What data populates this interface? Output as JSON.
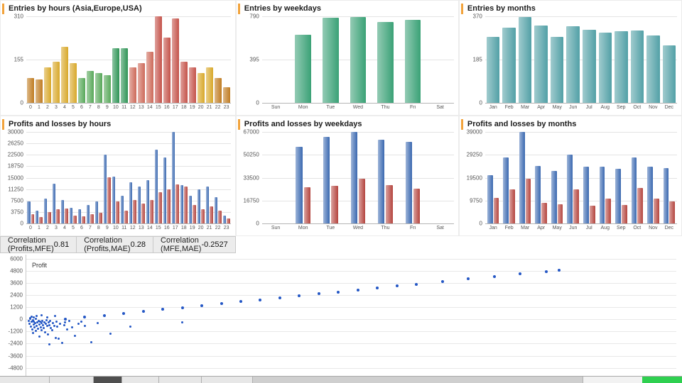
{
  "accent": {
    "title_accent": "#f2a33c",
    "profit_blue": "#3a68b0",
    "loss_red": "#b4443e",
    "entries_green": "#3aa176",
    "entries_teal": "#52a0a6",
    "scatter_dot": "#2457c5",
    "indicator_green": "#2fd050"
  },
  "correlation_bar": [
    {
      "label": "Correlation (Profits,MFE)",
      "value": "0.81"
    },
    {
      "label": "Correlation (Profits,MAE)",
      "value": "0.28"
    },
    {
      "label": "Correlation (MFE,MAE)",
      "value": "-0.2527"
    }
  ],
  "chart_data": [
    {
      "id": "entries_by_hours",
      "type": "bar",
      "title": "Entries by hours (Asia,Europe,USA)",
      "categories": [
        "0",
        "1",
        "2",
        "3",
        "4",
        "5",
        "6",
        "7",
        "8",
        "9",
        "10",
        "11",
        "12",
        "13",
        "14",
        "15",
        "16",
        "17",
        "18",
        "19",
        "20",
        "21",
        "22",
        "23"
      ],
      "values": [
        88,
        83,
        128,
        147,
        200,
        142,
        88,
        115,
        107,
        100,
        195,
        195,
        126,
        142,
        182,
        310,
        235,
        302,
        147,
        128,
        107,
        128,
        88,
        56
      ],
      "bar_colors": [
        "#c07c22",
        "#c07c22",
        "#d8a82a",
        "#d8a82a",
        "#d8a82a",
        "#d8a82a",
        "#58a85a",
        "#58a85a",
        "#58a85a",
        "#58a85a",
        "#2e9455",
        "#2e9455",
        "#cd6a5a",
        "#cd6a5a",
        "#cd6a5a",
        "#c4524a",
        "#c4524a",
        "#c4524a",
        "#c4524a",
        "#c4524a",
        "#d8a82a",
        "#d8a82a",
        "#c07c22",
        "#c07c22"
      ],
      "ylim": [
        0,
        310
      ],
      "yticks": [
        0,
        155,
        310
      ]
    },
    {
      "id": "entries_by_weekdays",
      "type": "bar",
      "title": "Entries by weekdays",
      "categories": [
        "Sun",
        "Mon",
        "Tue",
        "Wed",
        "Thu",
        "Fri",
        "Sat"
      ],
      "values": [
        0,
        620,
        775,
        785,
        740,
        760,
        0
      ],
      "color": "#3aa176",
      "ylim": [
        0,
        790
      ],
      "yticks": [
        0,
        395,
        790
      ]
    },
    {
      "id": "entries_by_months",
      "type": "bar",
      "title": "Entries by months",
      "categories": [
        "Jan",
        "Feb",
        "Mar",
        "Apr",
        "May",
        "Jun",
        "Jul",
        "Aug",
        "Sep",
        "Oct",
        "Nov",
        "Dec"
      ],
      "values": [
        283,
        322,
        368,
        330,
        283,
        328,
        312,
        300,
        306,
        310,
        287,
        247
      ],
      "color": "#52a0a6",
      "ylim": [
        0,
        370
      ],
      "yticks": [
        0,
        185,
        370
      ]
    },
    {
      "id": "pl_by_hours",
      "type": "bar",
      "title": "Profits and losses by hours",
      "categories": [
        "0",
        "1",
        "2",
        "3",
        "4",
        "5",
        "6",
        "7",
        "8",
        "9",
        "10",
        "11",
        "12",
        "13",
        "14",
        "15",
        "16",
        "17",
        "18",
        "19",
        "20",
        "21",
        "22",
        "23"
      ],
      "series": [
        {
          "name": "profit",
          "color": "#3a68b0",
          "values": [
            7200,
            4100,
            8100,
            13100,
            7600,
            5100,
            4600,
            6100,
            7100,
            22600,
            15300,
            9100,
            13600,
            12100,
            14100,
            24200,
            21600,
            30000,
            12600,
            9100,
            11100,
            12100,
            8600,
            2600
          ]
        },
        {
          "name": "loss",
          "color": "#b4443e",
          "values": [
            3000,
            2100,
            3700,
            4600,
            4900,
            2600,
            2300,
            3100,
            3600,
            15200,
            7100,
            4100,
            7600,
            6600,
            7700,
            10200,
            11200,
            12900,
            12100,
            6100,
            4600,
            5600,
            4100,
            1600
          ]
        }
      ],
      "ylim": [
        0,
        30000
      ],
      "yticks": [
        0,
        3750,
        7500,
        11250,
        15000,
        18750,
        22500,
        26250,
        30000
      ]
    },
    {
      "id": "pl_by_weekdays",
      "type": "bar",
      "title": "Profits and losses by weekdays",
      "categories": [
        "Sun",
        "Mon",
        "Tue",
        "Wed",
        "Thu",
        "Fri",
        "Sat"
      ],
      "series": [
        {
          "name": "profit",
          "color": "#3a68b0",
          "values": [
            0,
            56000,
            63500,
            67000,
            61500,
            59500,
            0
          ]
        },
        {
          "name": "loss",
          "color": "#b4443e",
          "values": [
            0,
            26500,
            27500,
            32500,
            28000,
            25500,
            0
          ]
        }
      ],
      "ylim": [
        0,
        67000
      ],
      "yticks": [
        0,
        16750,
        33500,
        50250,
        67000
      ]
    },
    {
      "id": "pl_by_months",
      "type": "bar",
      "title": "Profits and losses by months",
      "categories": [
        "Jan",
        "Feb",
        "Mar",
        "Apr",
        "May",
        "Jun",
        "Jul",
        "Aug",
        "Sep",
        "Oct",
        "Nov",
        "Dec"
      ],
      "series": [
        {
          "name": "profit",
          "color": "#3a68b0",
          "values": [
            20500,
            28200,
            39000,
            24600,
            22300,
            29300,
            24100,
            24100,
            23300,
            28100,
            24200,
            23700
          ]
        },
        {
          "name": "loss",
          "color": "#b4443e",
          "values": [
            10800,
            14600,
            19200,
            8900,
            8100,
            14600,
            7600,
            10600,
            7900,
            15100,
            10700,
            9400
          ]
        }
      ],
      "ylim": [
        0,
        39000
      ],
      "yticks": [
        0,
        9750,
        19500,
        29250,
        39000
      ]
    },
    {
      "id": "profit_scatter",
      "type": "scatter",
      "series_label": "Profit",
      "ylim": [
        -5600,
        6400
      ],
      "yticks": [
        6000,
        4800,
        3600,
        2400,
        1200,
        0,
        -1200,
        -2400,
        -3600,
        -4800
      ],
      "trend": [
        [
          0.06,
          0
        ],
        [
          0.09,
          200
        ],
        [
          0.12,
          390
        ],
        [
          0.15,
          580
        ],
        [
          0.18,
          780
        ],
        [
          0.21,
          970
        ],
        [
          0.24,
          1160
        ],
        [
          0.27,
          1350
        ],
        [
          0.3,
          1550
        ],
        [
          0.33,
          1740
        ],
        [
          0.36,
          1930
        ],
        [
          0.39,
          2120
        ],
        [
          0.42,
          2320
        ],
        [
          0.45,
          2510
        ],
        [
          0.48,
          2700
        ],
        [
          0.51,
          2890
        ],
        [
          0.54,
          3090
        ],
        [
          0.57,
          3280
        ],
        [
          0.6,
          3470
        ],
        [
          0.64,
          3720
        ],
        [
          0.68,
          3980
        ],
        [
          0.72,
          4230
        ],
        [
          0.76,
          4490
        ],
        [
          0.8,
          4740
        ],
        [
          0.82,
          4870
        ]
      ],
      "cluster": [
        [
          0.004,
          -150
        ],
        [
          0.005,
          -420
        ],
        [
          0.006,
          80
        ],
        [
          0.006,
          150
        ],
        [
          0.007,
          -700
        ],
        [
          0.008,
          -260
        ],
        [
          0.008,
          260
        ],
        [
          0.009,
          -980
        ],
        [
          0.01,
          -90
        ],
        [
          0.01,
          -1350
        ],
        [
          0.011,
          -520
        ],
        [
          0.012,
          -200
        ],
        [
          0.012,
          220
        ],
        [
          0.013,
          -820
        ],
        [
          0.014,
          -400
        ],
        [
          0.015,
          -1150
        ],
        [
          0.015,
          60
        ],
        [
          0.016,
          -640
        ],
        [
          0.016,
          340
        ],
        [
          0.017,
          -300
        ],
        [
          0.018,
          -900
        ],
        [
          0.019,
          -150
        ],
        [
          0.02,
          -1700
        ],
        [
          0.02,
          -480
        ],
        [
          0.021,
          -240
        ],
        [
          0.022,
          -760
        ],
        [
          0.023,
          -380
        ],
        [
          0.024,
          -1050
        ],
        [
          0.024,
          410
        ],
        [
          0.025,
          -160
        ],
        [
          0.026,
          -560
        ],
        [
          0.027,
          -880
        ],
        [
          0.028,
          -290
        ],
        [
          0.029,
          -1250
        ],
        [
          0.03,
          -440
        ],
        [
          0.031,
          -90
        ],
        [
          0.032,
          -680
        ],
        [
          0.032,
          200
        ],
        [
          0.033,
          -1500
        ],
        [
          0.034,
          -330
        ],
        [
          0.035,
          -2450
        ],
        [
          0.036,
          -580
        ],
        [
          0.037,
          -190
        ],
        [
          0.038,
          -840
        ],
        [
          0.04,
          -1100
        ],
        [
          0.041,
          -360
        ],
        [
          0.043,
          -620
        ],
        [
          0.044,
          300
        ],
        [
          0.045,
          -1850
        ],
        [
          0.046,
          -260
        ],
        [
          0.048,
          -720
        ],
        [
          0.05,
          -1900
        ],
        [
          0.052,
          -420
        ],
        [
          0.055,
          -2350
        ],
        [
          0.058,
          -560
        ],
        [
          0.06,
          -300
        ],
        [
          0.063,
          -980
        ],
        [
          0.066,
          -180
        ],
        [
          0.07,
          -760
        ],
        [
          0.075,
          -1600
        ],
        [
          0.08,
          -420
        ],
        [
          0.085,
          -240
        ],
        [
          0.09,
          -640
        ],
        [
          0.1,
          -2280
        ],
        [
          0.11,
          -380
        ],
        [
          0.13,
          -1450
        ],
        [
          0.16,
          -700
        ],
        [
          0.24,
          -300
        ]
      ]
    }
  ],
  "bottom_bar": {
    "tab_count": 6,
    "indicator_color": "#2fd050"
  }
}
